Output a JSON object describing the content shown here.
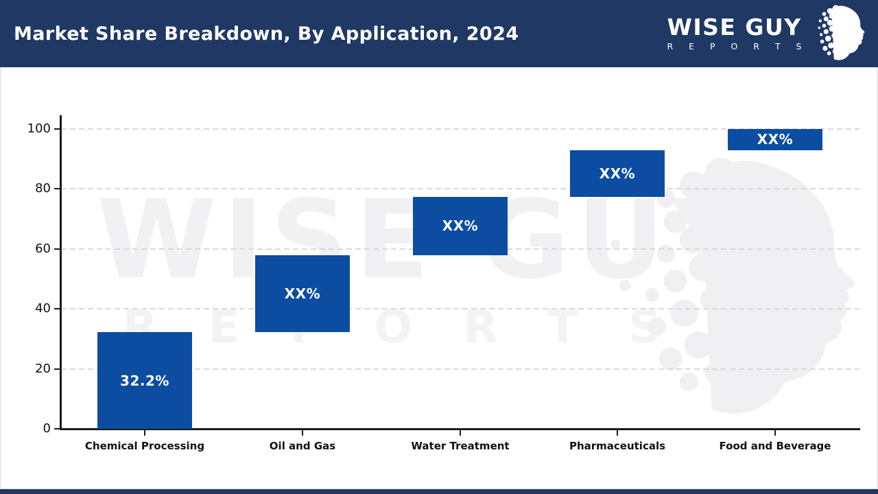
{
  "header": {
    "title": "Market Share Breakdown, By Application, 2024",
    "bg_color": "#1f3864",
    "logo": {
      "brand_line1": "WISE GUY",
      "brand_line2": "R E P O R T S"
    }
  },
  "watermark": {
    "line1": "WISE GUY",
    "line2": "REPORTS"
  },
  "chart_data": {
    "type": "bar",
    "subtype": "waterfall-market-share-breakdown",
    "title": "Market Share Breakdown, By Application, 2024",
    "categories": [
      "Chemical Processing",
      "Oil and Gas",
      "Water Treatment",
      "Pharmaceuticals",
      "Food and Beverage"
    ],
    "segments": [
      {
        "category": "Chemical Processing",
        "start": 0,
        "end": 32.2,
        "label": "32.2%"
      },
      {
        "category": "Oil and Gas",
        "start": 32.2,
        "end": 57.8,
        "label": "XX%"
      },
      {
        "category": "Water Treatment",
        "start": 57.8,
        "end": 77.3,
        "label": "XX%"
      },
      {
        "category": "Pharmaceuticals",
        "start": 77.3,
        "end": 92.9,
        "label": "XX%"
      },
      {
        "category": "Food and Beverage",
        "start": 92.9,
        "end": 100,
        "label": "XX%"
      }
    ],
    "xlabel": "",
    "ylabel": "",
    "ylim": [
      0,
      100
    ],
    "yticks": [
      0,
      20,
      40,
      60,
      80,
      100
    ],
    "grid": "horizontal dashed",
    "legend": "none",
    "bar_color": "#0c4da2",
    "bar_label_color": "#ffffff",
    "axis_color": "#1a1a1a"
  }
}
